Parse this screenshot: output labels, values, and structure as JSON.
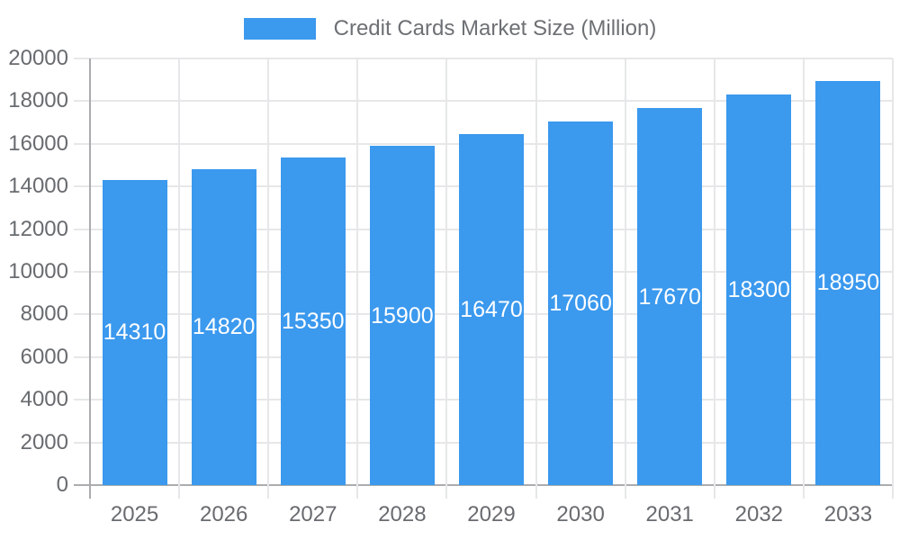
{
  "chart_data": {
    "type": "bar",
    "title": "Credit Cards Market Size (Million)",
    "legend_position": "top",
    "categories": [
      "2025",
      "2026",
      "2027",
      "2028",
      "2029",
      "2030",
      "2031",
      "2032",
      "2033"
    ],
    "series": [
      {
        "name": "Credit Cards Market Size (Million)",
        "values": [
          14310,
          14820,
          15350,
          15900,
          16470,
          17060,
          17670,
          18300,
          18950
        ]
      }
    ],
    "bar_value_labels": [
      "14310",
      "14820",
      "15350",
      "15900",
      "16470",
      "17060",
      "17670",
      "18300",
      "18950"
    ],
    "xlabel": "",
    "ylabel": "",
    "ylim": [
      0,
      20000
    ],
    "ytick_step": 2000,
    "yticks": [
      0,
      2000,
      4000,
      6000,
      8000,
      10000,
      12000,
      14000,
      16000,
      18000,
      20000
    ],
    "grid": true,
    "colors": {
      "bar": "#3b99ee",
      "grid_line": "#e6e7e8",
      "axis_line": "#aaacae",
      "tick_label_text": "#686b6f",
      "legend_text": "#6d7074",
      "bar_value_text": "#ffffff",
      "background": "#ffffff"
    }
  }
}
